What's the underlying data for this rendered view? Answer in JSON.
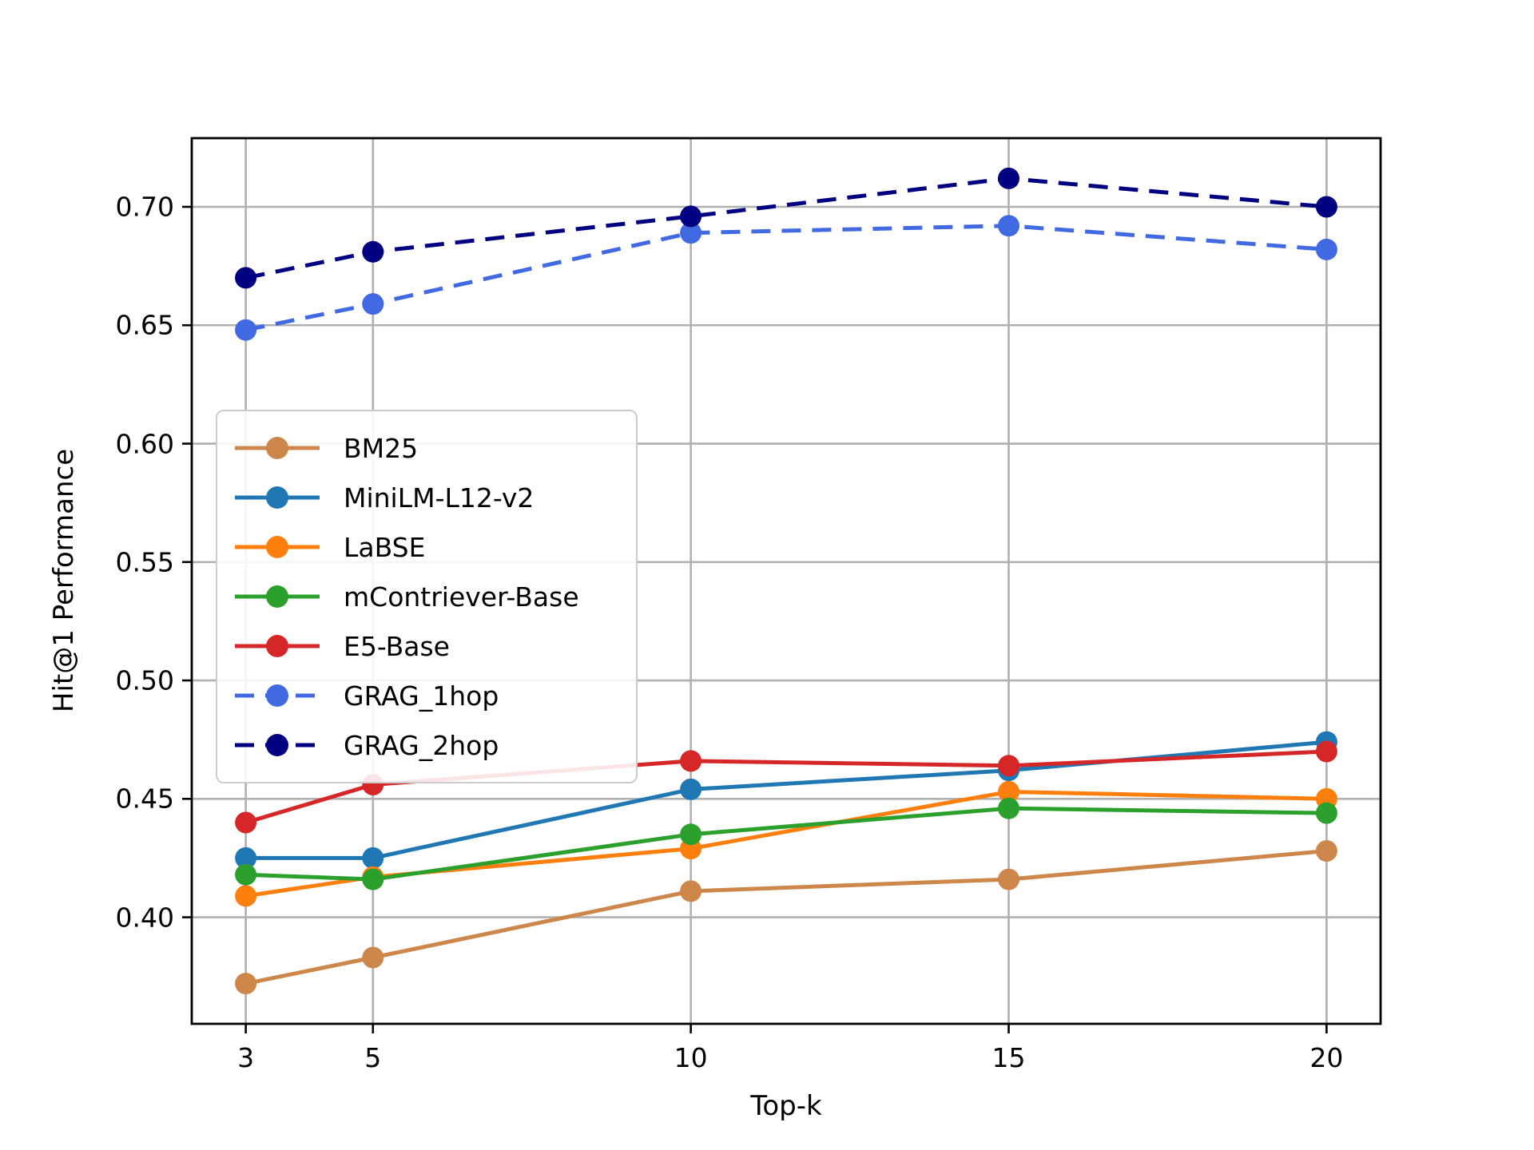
{
  "chart_data": {
    "type": "line",
    "title": "",
    "xlabel": "Top-k",
    "ylabel": "Hit@1 Performance",
    "x": [
      3,
      5,
      10,
      15,
      20
    ],
    "xtick_labels": [
      "3",
      "5",
      "10",
      "15",
      "20"
    ],
    "yticks": [
      0.4,
      0.45,
      0.5,
      0.55,
      0.6,
      0.65,
      0.7
    ],
    "ytick_labels": [
      "0.40",
      "0.45",
      "0.50",
      "0.55",
      "0.60",
      "0.65",
      "0.70"
    ],
    "xlim": [
      2.15,
      20.85
    ],
    "ylim": [
      0.355,
      0.729
    ],
    "grid": true,
    "legend_position": "center-left",
    "series": [
      {
        "name": "BM25",
        "color": "#CE874B",
        "style": "solid",
        "values": [
          0.372,
          0.383,
          0.411,
          0.416,
          0.428
        ]
      },
      {
        "name": "MiniLM-L12-v2",
        "color": "#1F77B4",
        "style": "solid",
        "values": [
          0.425,
          0.425,
          0.454,
          0.462,
          0.474
        ]
      },
      {
        "name": "LaBSE",
        "color": "#FF7F0E",
        "style": "solid",
        "values": [
          0.409,
          0.417,
          0.429,
          0.453,
          0.45
        ]
      },
      {
        "name": "mContriever-Base",
        "color": "#2CA02C",
        "style": "solid",
        "values": [
          0.418,
          0.416,
          0.435,
          0.446,
          0.444
        ]
      },
      {
        "name": "E5-Base",
        "color": "#D62728",
        "style": "solid",
        "values": [
          0.44,
          0.456,
          0.466,
          0.464,
          0.47
        ]
      },
      {
        "name": "GRAG_1hop",
        "color": "#4169E1",
        "style": "dashed",
        "values": [
          0.648,
          0.659,
          0.689,
          0.692,
          0.682
        ]
      },
      {
        "name": "GRAG_2hop",
        "color": "#000080",
        "style": "dashed",
        "values": [
          0.67,
          0.681,
          0.696,
          0.712,
          0.7
        ]
      }
    ]
  },
  "colors": {
    "grid": "#b0b0b0",
    "spine": "#000000",
    "legend_border": "#cccccc",
    "background": "#ffffff"
  }
}
